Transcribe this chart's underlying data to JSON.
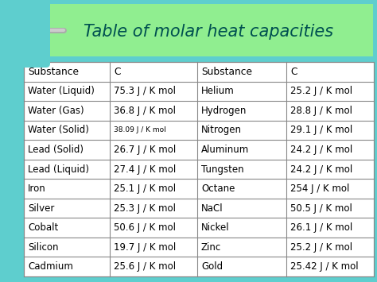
{
  "title": "Table of molar heat capacities",
  "title_color": "#005050",
  "title_bg_color": "#90EE90",
  "bg_color": "#5ECECE",
  "table_edge_color": "#888888",
  "header_row": [
    "Substance",
    "C",
    "Substance",
    "C"
  ],
  "left_data": [
    [
      "Water (Liquid)",
      "75.3 J / K mol",
      false
    ],
    [
      "Water (Gas)",
      "36.8 J / K mol",
      false
    ],
    [
      "Water (Solid)",
      "38.09 J / K mol",
      true
    ],
    [
      "Lead (Solid)",
      "26.7 J / K mol",
      false
    ],
    [
      "Lead (Liquid)",
      "27.4 J / K mol",
      false
    ],
    [
      "Iron",
      "25.1 J / K mol",
      false
    ],
    [
      "Silver",
      "25.3 J / K mol",
      false
    ],
    [
      "Cobalt",
      "50.6 J / K mol",
      false
    ],
    [
      "Silicon",
      "19.7 J / K mol",
      false
    ],
    [
      "Cadmium",
      "25.6 J / K mol",
      false
    ]
  ],
  "right_data": [
    [
      "Helium",
      "25.2 J / K mol"
    ],
    [
      "Hydrogen",
      "28.8 J / K mol"
    ],
    [
      "Nitrogen",
      "29.1 J / K mol"
    ],
    [
      "Aluminum",
      "24.2 J / K mol"
    ],
    [
      "Tungsten",
      "24.2 J / K mol"
    ],
    [
      "Octane",
      "254 J / K mol"
    ],
    [
      "NaCl",
      "50.5 J / K mol"
    ],
    [
      "Nickel",
      "26.1 J / K mol"
    ],
    [
      "Zinc",
      "25.2 J / K mol"
    ],
    [
      "Gold",
      "25.42 J / K mol"
    ]
  ],
  "title_fontsize": 15,
  "cell_fontsize": 8.5,
  "header_fontsize": 8.8,
  "small_fontsize": 6.5,
  "fig_width": 4.74,
  "fig_height": 3.55,
  "dpi": 100
}
